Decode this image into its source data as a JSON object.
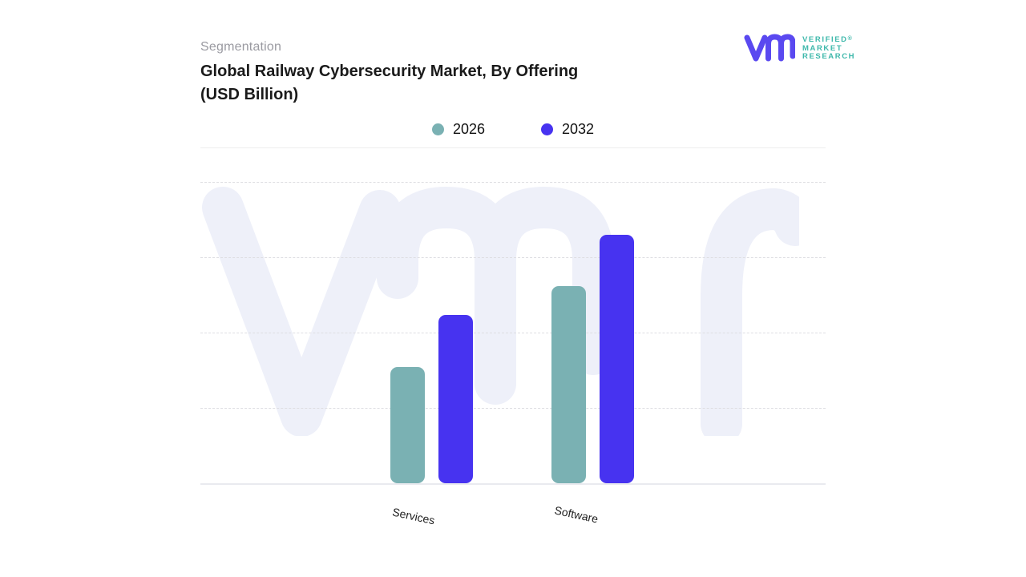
{
  "header": {
    "eyebrow": "Segmentation",
    "title_line1": "Global Railway Cybersecurity Market, By Offering",
    "title_line2": "(USD Billion)"
  },
  "logo": {
    "line1": "VERIFIED",
    "line2": "MARKET",
    "line3": "RESEARCH",
    "registered": "®"
  },
  "brand": {
    "mark_color": "#5a49f0",
    "logo_text_color": "#3eb8ab",
    "watermark_color": "#eef0f9"
  },
  "chart_data": {
    "type": "bar",
    "title": "Global Railway Cybersecurity Market, By Offering (USD Billion)",
    "categories": [
      "Services",
      "Software"
    ],
    "series": [
      {
        "name": "2026",
        "color": "#7ab1b3",
        "values": [
          1.54,
          2.62
        ]
      },
      {
        "name": "2032",
        "color": "#4733f0",
        "values": [
          2.23,
          3.3
        ]
      }
    ],
    "xlabel": "",
    "ylabel": "",
    "ylim": [
      0,
      4
    ],
    "y_axis_labels_visible": false,
    "grid": "horizontal dashed gridlines, solid baseline",
    "legend_position": "top-center"
  }
}
